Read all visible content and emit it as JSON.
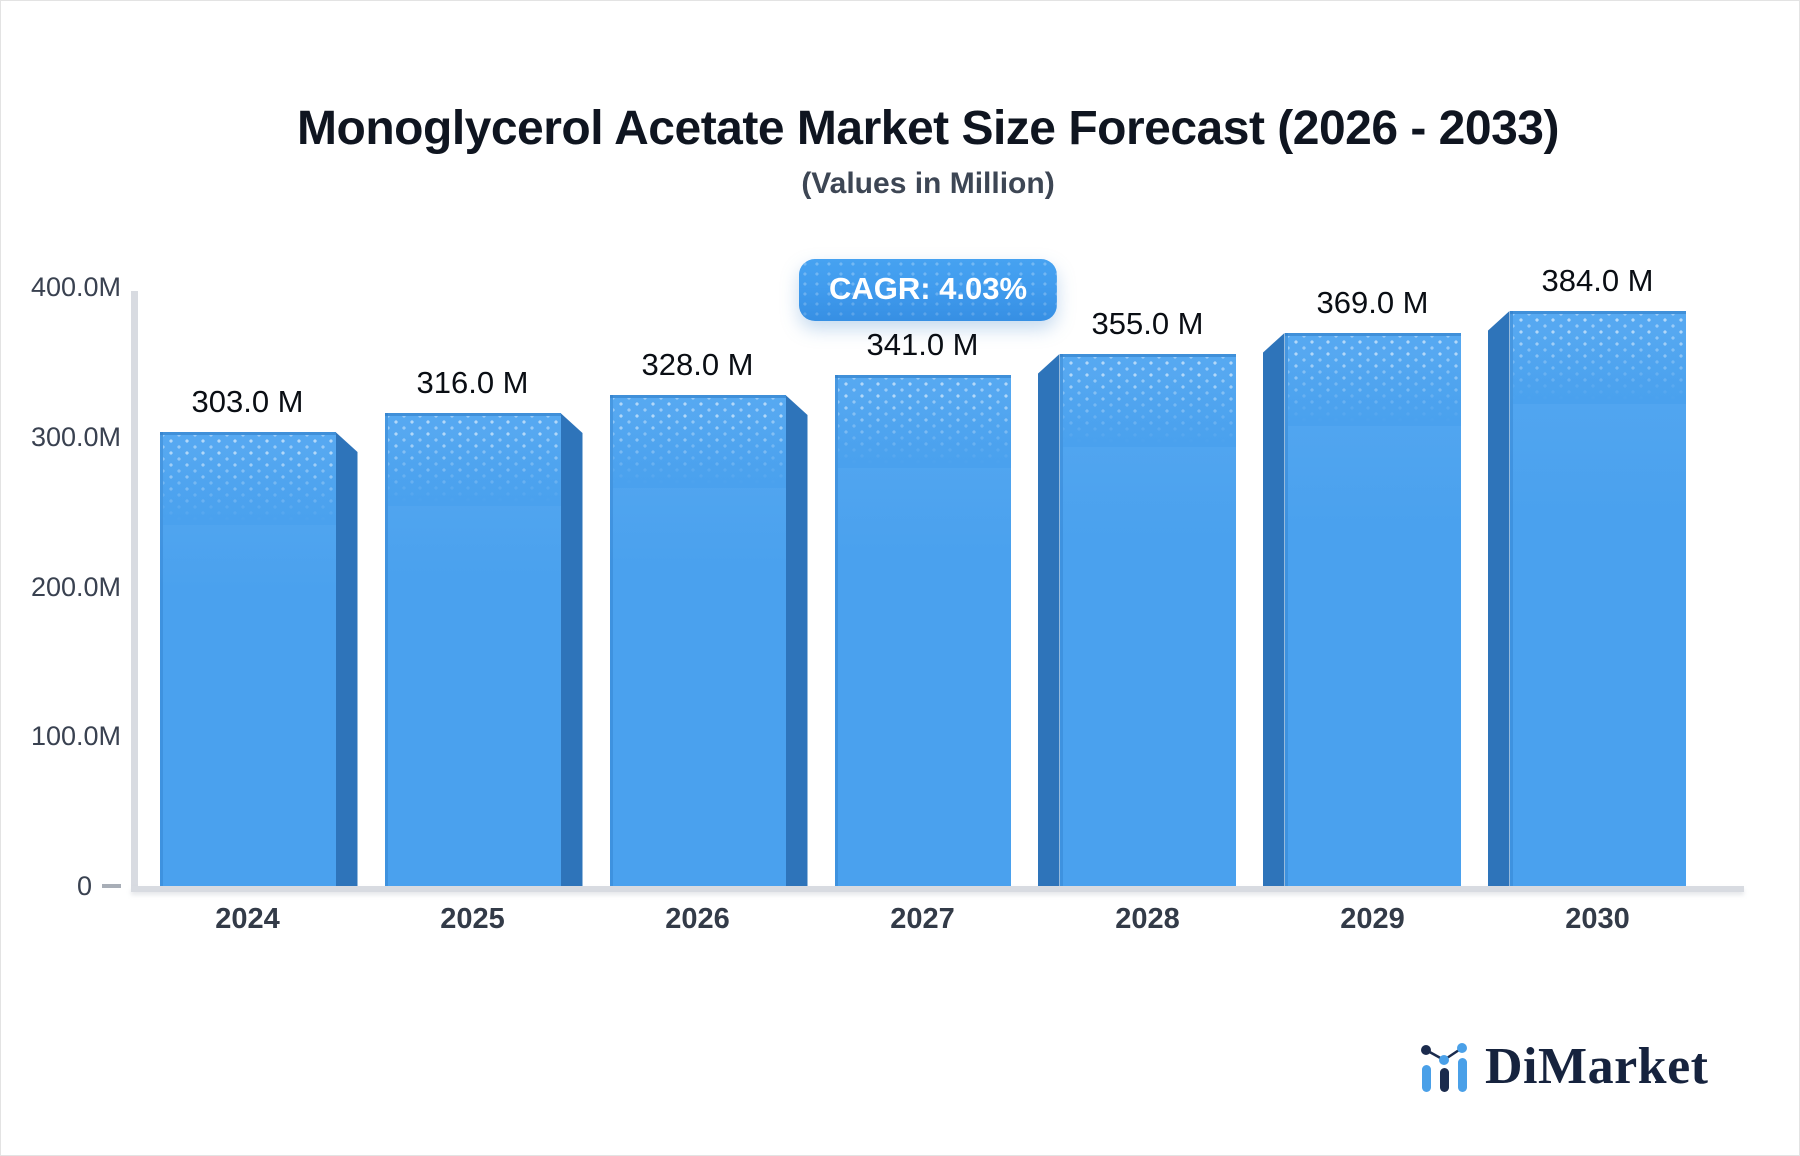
{
  "chart": {
    "title": "Monoglycerol Acetate Market Size Forecast (2026 - 2033)",
    "subtitle": "(Values in Million)"
  },
  "badge": {
    "label": "CAGR: 4.03%",
    "bg_color": "#3e9bee",
    "text_color": "#ffffff"
  },
  "chart_data": {
    "type": "bar",
    "title": "Monoglycerol Acetate Market Size Forecast (2026 - 2033)",
    "subtitle": "(Values in Million)",
    "categories": [
      "2024",
      "2025",
      "2026",
      "2027",
      "2028",
      "2029",
      "2030"
    ],
    "values": [
      303,
      316,
      328,
      341,
      355,
      369,
      384
    ],
    "value_labels": [
      "303.0 M",
      "316.0 M",
      "328.0 M",
      "341.0 M",
      "355.0 M",
      "369.0 M",
      "384.0 M"
    ],
    "xlabel": "",
    "ylabel": "",
    "ylim": [
      0,
      400
    ],
    "yticks": [
      {
        "label": "400.0M",
        "value": 400
      },
      {
        "label": "300.0M",
        "value": 300
      },
      {
        "label": "200.0M",
        "value": 200
      },
      {
        "label": "100.0M",
        "value": 100
      },
      {
        "label": "0",
        "value": 0
      }
    ],
    "grid": false,
    "legend": false,
    "bar_face_color": "#4aa1ee",
    "bar_face_top_color": "#57a9f1",
    "bar_side_color": "#2e74ba",
    "axis_color": "#d8dbe1",
    "style_3d": "center-vanishing-point"
  },
  "logo": {
    "text": "DiMarket",
    "icon": "mini-bar-chart-icon",
    "navy_color": "#1b2b4d",
    "blue_color": "#4aa0e8"
  }
}
